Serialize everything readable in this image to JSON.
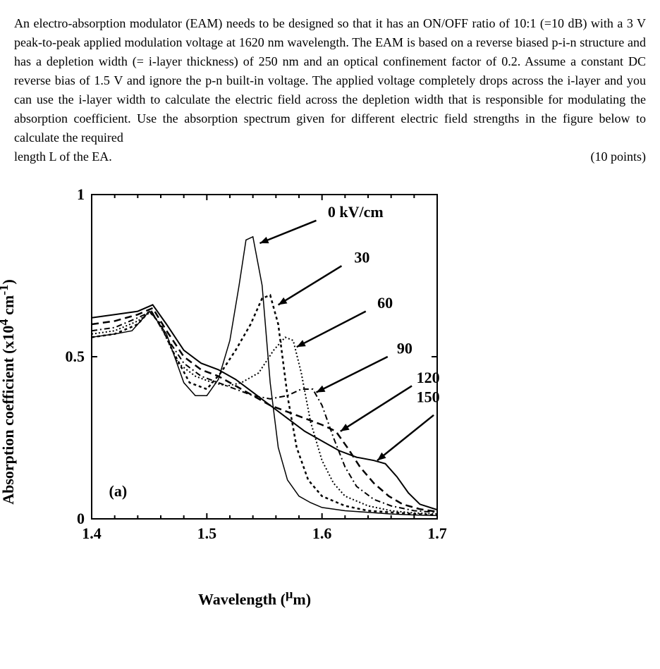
{
  "problem": {
    "text": "An electro-absorption modulator (EAM) needs to be designed so that it has an ON/OFF ratio of 10:1 (=10 dB) with a 3 V peak-to-peak applied modulation voltage at 1620 nm wavelength. The EAM is based on a reverse biased p-i-n structure and has a depletion width (= i-layer thickness) of  250 nm and an optical confinement factor of 0.2. Assume a constant DC reverse bias of 1.5 V and ignore the p-n built-in voltage. The applied voltage completely drops across the i-layer and you can use the i-layer width to calculate the electric field across the depletion width that is responsible for modulating the absorption coefficient. Use the absorption spectrum given for different electric field strengths in the figure below to calculate the required",
    "last_line_left": "length L of the EA.",
    "last_line_right": "(10 points)"
  },
  "chart": {
    "type": "line",
    "panel_label": "(a)",
    "xlabel": "Wavelength (ᵏm)",
    "ylabel_html": "Absorption coefficient (x10⁴ cm⁻¹)",
    "xlim": [
      1.4,
      1.7
    ],
    "ylim": [
      0,
      1
    ],
    "xticks": [
      1.4,
      1.5,
      1.6,
      1.7
    ],
    "yticks": [
      0,
      0.5,
      1
    ],
    "x_minor_ticks": [
      1.42,
      1.44,
      1.46,
      1.48,
      1.52,
      1.54,
      1.56,
      1.58,
      1.62,
      1.64,
      1.66,
      1.68
    ],
    "background_color": "#ffffff",
    "line_color": "#000000",
    "annotations": [
      "0 kV/cm",
      "30",
      "60",
      "90",
      "120",
      "150"
    ],
    "series": [
      {
        "name": "0 kV/cm",
        "class": "c0",
        "data": [
          [
            1.4,
            0.56
          ],
          [
            1.42,
            0.57
          ],
          [
            1.435,
            0.58
          ],
          [
            1.45,
            0.64
          ],
          [
            1.455,
            0.62
          ],
          [
            1.465,
            0.57
          ],
          [
            1.48,
            0.42
          ],
          [
            1.49,
            0.38
          ],
          [
            1.5,
            0.38
          ],
          [
            1.51,
            0.43
          ],
          [
            1.52,
            0.55
          ],
          [
            1.528,
            0.72
          ],
          [
            1.534,
            0.86
          ],
          [
            1.54,
            0.87
          ],
          [
            1.548,
            0.72
          ],
          [
            1.555,
            0.42
          ],
          [
            1.562,
            0.22
          ],
          [
            1.57,
            0.12
          ],
          [
            1.58,
            0.07
          ],
          [
            1.59,
            0.05
          ],
          [
            1.6,
            0.035
          ],
          [
            1.62,
            0.025
          ],
          [
            1.64,
            0.02
          ],
          [
            1.66,
            0.015
          ],
          [
            1.68,
            0.012
          ],
          [
            1.7,
            0.01
          ]
        ]
      },
      {
        "name": "30",
        "class": "c30",
        "data": [
          [
            1.4,
            0.56
          ],
          [
            1.42,
            0.57
          ],
          [
            1.44,
            0.6
          ],
          [
            1.45,
            0.64
          ],
          [
            1.46,
            0.6
          ],
          [
            1.47,
            0.52
          ],
          [
            1.485,
            0.42
          ],
          [
            1.5,
            0.4
          ],
          [
            1.512,
            0.45
          ],
          [
            1.525,
            0.52
          ],
          [
            1.538,
            0.6
          ],
          [
            1.548,
            0.68
          ],
          [
            1.555,
            0.69
          ],
          [
            1.562,
            0.6
          ],
          [
            1.57,
            0.38
          ],
          [
            1.578,
            0.22
          ],
          [
            1.588,
            0.12
          ],
          [
            1.6,
            0.07
          ],
          [
            1.62,
            0.04
          ],
          [
            1.64,
            0.025
          ],
          [
            1.66,
            0.02
          ],
          [
            1.68,
            0.015
          ],
          [
            1.7,
            0.012
          ]
        ]
      },
      {
        "name": "60",
        "class": "c60",
        "data": [
          [
            1.4,
            0.57
          ],
          [
            1.42,
            0.58
          ],
          [
            1.44,
            0.61
          ],
          [
            1.452,
            0.64
          ],
          [
            1.462,
            0.58
          ],
          [
            1.475,
            0.48
          ],
          [
            1.49,
            0.44
          ],
          [
            1.505,
            0.42
          ],
          [
            1.518,
            0.41
          ],
          [
            1.53,
            0.42
          ],
          [
            1.545,
            0.45
          ],
          [
            1.558,
            0.52
          ],
          [
            1.568,
            0.56
          ],
          [
            1.575,
            0.55
          ],
          [
            1.582,
            0.45
          ],
          [
            1.59,
            0.3
          ],
          [
            1.6,
            0.18
          ],
          [
            1.61,
            0.11
          ],
          [
            1.62,
            0.07
          ],
          [
            1.64,
            0.04
          ],
          [
            1.66,
            0.025
          ],
          [
            1.68,
            0.018
          ],
          [
            1.7,
            0.015
          ]
        ]
      },
      {
        "name": "90",
        "class": "c90",
        "data": [
          [
            1.4,
            0.58
          ],
          [
            1.42,
            0.59
          ],
          [
            1.44,
            0.62
          ],
          [
            1.452,
            0.64
          ],
          [
            1.465,
            0.56
          ],
          [
            1.48,
            0.48
          ],
          [
            1.495,
            0.44
          ],
          [
            1.51,
            0.42
          ],
          [
            1.525,
            0.4
          ],
          [
            1.54,
            0.38
          ],
          [
            1.555,
            0.37
          ],
          [
            1.57,
            0.38
          ],
          [
            1.582,
            0.4
          ],
          [
            1.592,
            0.4
          ],
          [
            1.6,
            0.35
          ],
          [
            1.61,
            0.25
          ],
          [
            1.62,
            0.16
          ],
          [
            1.63,
            0.1
          ],
          [
            1.645,
            0.06
          ],
          [
            1.66,
            0.04
          ],
          [
            1.68,
            0.025
          ],
          [
            1.7,
            0.02
          ]
        ]
      },
      {
        "name": "120",
        "class": "c120",
        "data": [
          [
            1.4,
            0.6
          ],
          [
            1.42,
            0.61
          ],
          [
            1.44,
            0.63
          ],
          [
            1.453,
            0.65
          ],
          [
            1.465,
            0.58
          ],
          [
            1.48,
            0.5
          ],
          [
            1.495,
            0.46
          ],
          [
            1.51,
            0.44
          ],
          [
            1.525,
            0.41
          ],
          [
            1.54,
            0.38
          ],
          [
            1.555,
            0.35
          ],
          [
            1.57,
            0.33
          ],
          [
            1.585,
            0.31
          ],
          [
            1.6,
            0.29
          ],
          [
            1.612,
            0.27
          ],
          [
            1.622,
            0.22
          ],
          [
            1.633,
            0.16
          ],
          [
            1.645,
            0.11
          ],
          [
            1.658,
            0.07
          ],
          [
            1.67,
            0.045
          ],
          [
            1.685,
            0.03
          ],
          [
            1.7,
            0.022
          ]
        ]
      },
      {
        "name": "150",
        "class": "c150",
        "data": [
          [
            1.4,
            0.62
          ],
          [
            1.42,
            0.63
          ],
          [
            1.44,
            0.64
          ],
          [
            1.453,
            0.66
          ],
          [
            1.465,
            0.6
          ],
          [
            1.48,
            0.52
          ],
          [
            1.495,
            0.48
          ],
          [
            1.51,
            0.46
          ],
          [
            1.525,
            0.43
          ],
          [
            1.54,
            0.39
          ],
          [
            1.555,
            0.35
          ],
          [
            1.57,
            0.31
          ],
          [
            1.585,
            0.27
          ],
          [
            1.6,
            0.24
          ],
          [
            1.615,
            0.21
          ],
          [
            1.63,
            0.19
          ],
          [
            1.645,
            0.18
          ],
          [
            1.655,
            0.17
          ],
          [
            1.665,
            0.13
          ],
          [
            1.675,
            0.08
          ],
          [
            1.685,
            0.045
          ],
          [
            1.7,
            0.028
          ]
        ]
      }
    ],
    "arrows": [
      {
        "from": [
          1.595,
          0.92
        ],
        "to": [
          1.546,
          0.85
        ],
        "label": "0 kV/cm",
        "label_at": [
          1.605,
          0.93
        ]
      },
      {
        "from": [
          1.617,
          0.78
        ],
        "to": [
          1.562,
          0.66
        ],
        "label": "30",
        "label_at": [
          1.628,
          0.79
        ]
      },
      {
        "from": [
          1.638,
          0.64
        ],
        "to": [
          1.578,
          0.53
        ],
        "label": "60",
        "label_at": [
          1.648,
          0.65
        ]
      },
      {
        "from": [
          1.657,
          0.5
        ],
        "to": [
          1.595,
          0.39
        ],
        "label": "90",
        "label_at": [
          1.665,
          0.51
        ]
      },
      {
        "from": [
          1.678,
          0.41
        ],
        "to": [
          1.616,
          0.27
        ],
        "label": "120",
        "label_at": [
          1.682,
          0.42
        ]
      },
      {
        "from": [
          1.697,
          0.32
        ],
        "to": [
          1.648,
          0.18
        ],
        "label": "150",
        "label_at": [
          1.682,
          0.36
        ]
      }
    ]
  }
}
